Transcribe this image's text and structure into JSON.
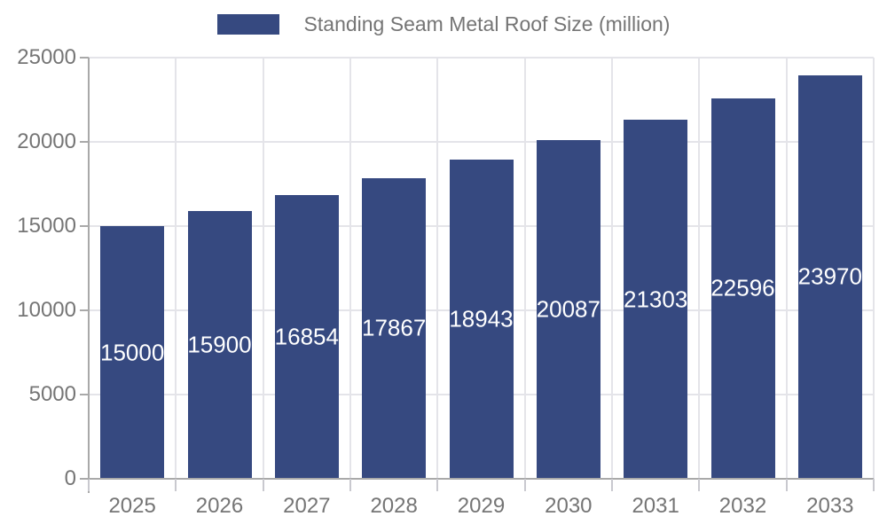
{
  "chart_data": {
    "type": "bar",
    "legend": "Standing Seam Metal Roof Size (million)",
    "series_name": "Standing Seam Metal Roof Size (million)",
    "categories": [
      "2025",
      "2026",
      "2027",
      "2028",
      "2029",
      "2030",
      "2031",
      "2032",
      "2033"
    ],
    "values": [
      15000,
      15900,
      16854,
      17867,
      18943,
      20087,
      21303,
      22596,
      23970
    ],
    "xlabel": "",
    "ylabel": "",
    "ylim": [
      0,
      25000
    ],
    "yticks": [
      0,
      5000,
      10000,
      15000,
      20000,
      25000
    ],
    "grid": true,
    "legend_position": "top",
    "colors": {
      "bar": "#364980",
      "bar_value_text": "#ffffff",
      "axis_text": "#757575",
      "grid_line": "#e4e4e9",
      "axis_line": "#a9a9a9",
      "tick_line": "#c9c9cf",
      "background": "#ffffff"
    }
  }
}
